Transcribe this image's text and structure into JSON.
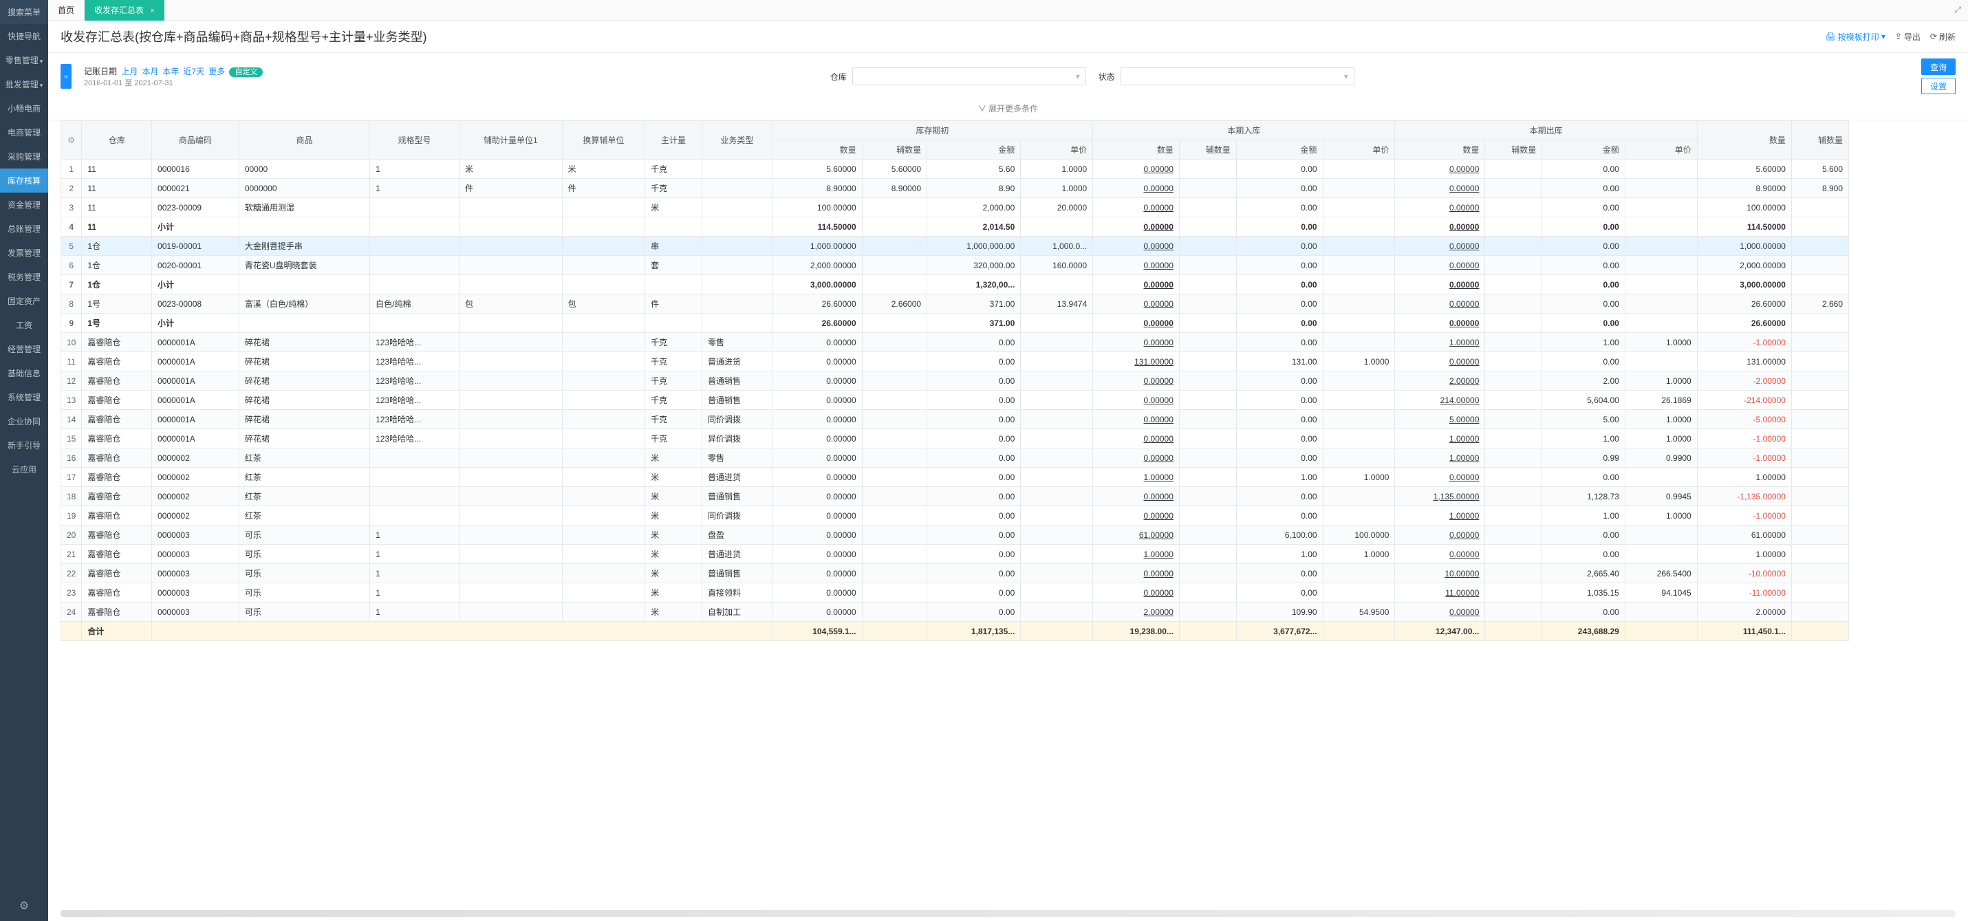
{
  "sidebar": {
    "items": [
      {
        "label": "搜索菜单",
        "arrow": false
      },
      {
        "label": "快捷导航",
        "arrow": false
      },
      {
        "label": "零售管理",
        "arrow": true
      },
      {
        "label": "批发管理",
        "arrow": true
      },
      {
        "label": "小畅电商",
        "arrow": false
      },
      {
        "label": "电商管理",
        "arrow": false
      },
      {
        "label": "采购管理",
        "arrow": false
      },
      {
        "label": "库存核算",
        "arrow": false,
        "active": true
      },
      {
        "label": "资金管理",
        "arrow": false
      },
      {
        "label": "总账管理",
        "arrow": false
      },
      {
        "label": "发票管理",
        "arrow": false
      },
      {
        "label": "税务管理",
        "arrow": false
      },
      {
        "label": "固定资产",
        "arrow": false
      },
      {
        "label": "工资",
        "arrow": false
      },
      {
        "label": "经营管理",
        "arrow": false
      },
      {
        "label": "基础信息",
        "arrow": false
      },
      {
        "label": "系统管理",
        "arrow": false
      },
      {
        "label": "企业协同",
        "arrow": false
      },
      {
        "label": "新手引导",
        "arrow": false
      },
      {
        "label": "云应用",
        "arrow": false
      }
    ]
  },
  "tabs": {
    "home": "首页",
    "active": "收发存汇总表",
    "close": "×",
    "expand": "⤢"
  },
  "title": "收发存汇总表(按仓库+商品编码+商品+规格型号+主计量+业务类型)",
  "actions": {
    "print": "按模板打印",
    "export": "导出",
    "refresh": "刷新"
  },
  "filter": {
    "collapse": "»",
    "date_label": "记账日期",
    "links": [
      "上月",
      "本月",
      "本年",
      "近7天",
      "更多"
    ],
    "custom": "自定义",
    "range": "2016-01-01 至 2021-07-31",
    "wh_label": "仓库",
    "status_label": "状态",
    "query": "查询",
    "settings": "设置",
    "expand": "∨ 展开更多条件"
  },
  "table": {
    "gear": "⚙",
    "groups": {
      "g1": "库存期初",
      "g2": "本期入库",
      "g3": "本期出库"
    },
    "head": {
      "c1": "仓库",
      "c2": "商品编码",
      "c3": "商品",
      "c4": "规格型号",
      "c5": "辅助计量单位1",
      "c6": "换算辅单位",
      "c7": "主计量",
      "c8": "业务类型",
      "q": "数量",
      "aq": "辅数量",
      "amt": "金额",
      "pr": "单价"
    },
    "rows": [
      {
        "i": 1,
        "wh": "11",
        "code": "0000016",
        "name": "00000",
        "spec": "1",
        "aux": "米",
        "conv": "米",
        "uom": "千克",
        "bt": "",
        "q1": "5.60000",
        "aq1": "5.60000",
        "a1": "5.60",
        "p1": "1.0000",
        "q2": "0.00000",
        "aq2": "",
        "a2": "0.00",
        "p2": "",
        "q3": "0.00000",
        "aq3": "",
        "a3": "0.00",
        "p3": "",
        "q4": "5.60000",
        "aq4": "5.600"
      },
      {
        "i": 2,
        "wh": "11",
        "code": "0000021",
        "name": "0000000",
        "spec": "1",
        "aux": "件",
        "conv": "件",
        "uom": "千克",
        "bt": "",
        "q1": "8.90000",
        "aq1": "8.90000",
        "a1": "8.90",
        "p1": "1.0000",
        "q2": "0.00000",
        "aq2": "",
        "a2": "0.00",
        "p2": "",
        "q3": "0.00000",
        "aq3": "",
        "a3": "0.00",
        "p3": "",
        "q4": "8.90000",
        "aq4": "8.900"
      },
      {
        "i": 3,
        "wh": "11",
        "code": "0023-00009",
        "name": "软糖通用测湿",
        "spec": "",
        "aux": "",
        "conv": "",
        "uom": "米",
        "bt": "",
        "q1": "100.00000",
        "aq1": "",
        "a1": "2,000.00",
        "p1": "20.0000",
        "q2": "0.00000",
        "aq2": "",
        "a2": "0.00",
        "p2": "",
        "q3": "0.00000",
        "aq3": "",
        "a3": "0.00",
        "p3": "",
        "q4": "100.00000",
        "aq4": ""
      },
      {
        "i": 4,
        "wh": "11",
        "code": "小计",
        "sub": true,
        "q1": "114.50000",
        "a1": "2,014.50",
        "q2": "0.00000",
        "a2": "0.00",
        "q3": "0.00000",
        "a3": "0.00",
        "q4": "114.50000"
      },
      {
        "i": 5,
        "wh": "1仓",
        "code": "0019-00001",
        "name": "大金刚菩提手串",
        "spec": "",
        "aux": "",
        "conv": "",
        "uom": "串",
        "bt": "",
        "hover": true,
        "q1": "1,000.00000",
        "aq1": "",
        "a1": "1,000,000.00",
        "p1": "1,000.0...",
        "q2": "0.00000",
        "aq2": "",
        "a2": "0.00",
        "p2": "",
        "q3": "0.00000",
        "aq3": "",
        "a3": "0.00",
        "p3": "",
        "q4": "1,000.00000",
        "aq4": ""
      },
      {
        "i": 6,
        "wh": "1仓",
        "code": "0020-00001",
        "name": "青花瓷U盘明晓套装",
        "spec": "",
        "aux": "",
        "conv": "",
        "uom": "套",
        "bt": "",
        "q1": "2,000.00000",
        "aq1": "",
        "a1": "320,000.00",
        "p1": "160.0000",
        "q2": "0.00000",
        "aq2": "",
        "a2": "0.00",
        "p2": "",
        "q3": "0.00000",
        "aq3": "",
        "a3": "0.00",
        "p3": "",
        "q4": "2,000.00000",
        "aq4": ""
      },
      {
        "i": 7,
        "wh": "1仓",
        "code": "小计",
        "sub": true,
        "q1": "3,000.00000",
        "a1": "1,320,00...",
        "q2": "0.00000",
        "a2": "0.00",
        "q3": "0.00000",
        "a3": "0.00",
        "q4": "3,000.00000"
      },
      {
        "i": 8,
        "wh": "1号",
        "code": "0023-00008",
        "name": "富溪（白色/纯棉）",
        "spec": "白色/纯棉",
        "aux": "包",
        "conv": "包",
        "uom": "件",
        "bt": "",
        "q1": "26.60000",
        "aq1": "2.66000",
        "a1": "371.00",
        "p1": "13.9474",
        "q2": "0.00000",
        "aq2": "",
        "a2": "0.00",
        "p2": "",
        "q3": "0.00000",
        "aq3": "",
        "a3": "0.00",
        "p3": "",
        "q4": "26.60000",
        "aq4": "2.660"
      },
      {
        "i": 9,
        "wh": "1号",
        "code": "小计",
        "sub": true,
        "q1": "26.60000",
        "a1": "371.00",
        "q2": "0.00000",
        "a2": "0.00",
        "q3": "0.00000",
        "a3": "0.00",
        "q4": "26.60000"
      },
      {
        "i": 10,
        "wh": "嘉睿陪仓",
        "code": "0000001A",
        "name": "碎花裙",
        "spec": "123哈哈哈...",
        "aux": "",
        "conv": "",
        "uom": "千克",
        "bt": "零售",
        "q1": "0.00000",
        "a1": "0.00",
        "q2": "0.00000",
        "a2": "0.00",
        "q3": "1.00000",
        "a3": "1.00",
        "p3": "1.0000",
        "q4": "-1.00000",
        "neg4": true
      },
      {
        "i": 11,
        "wh": "嘉睿陪仓",
        "code": "0000001A",
        "name": "碎花裙",
        "spec": "123哈哈哈...",
        "aux": "",
        "conv": "",
        "uom": "千克",
        "bt": "普通进货",
        "q1": "0.00000",
        "a1": "0.00",
        "q2": "131.00000",
        "a2": "131.00",
        "p2": "1.0000",
        "q3": "0.00000",
        "a3": "0.00",
        "q4": "131.00000"
      },
      {
        "i": 12,
        "wh": "嘉睿陪仓",
        "code": "0000001A",
        "name": "碎花裙",
        "spec": "123哈哈哈...",
        "aux": "",
        "conv": "",
        "uom": "千克",
        "bt": "普通销售",
        "q1": "0.00000",
        "a1": "0.00",
        "q2": "0.00000",
        "a2": "0.00",
        "q3": "2.00000",
        "a3": "2.00",
        "p3": "1.0000",
        "q4": "-2.00000",
        "neg4": true
      },
      {
        "i": 13,
        "wh": "嘉睿陪仓",
        "code": "0000001A",
        "name": "碎花裙",
        "spec": "123哈哈哈...",
        "aux": "",
        "conv": "",
        "uom": "千克",
        "bt": "普通销售",
        "q1": "0.00000",
        "a1": "0.00",
        "q2": "0.00000",
        "a2": "0.00",
        "q3": "214.00000",
        "a3": "5,604.00",
        "p3": "26.1869",
        "q4": "-214.00000",
        "neg4": true
      },
      {
        "i": 14,
        "wh": "嘉睿陪仓",
        "code": "0000001A",
        "name": "碎花裙",
        "spec": "123哈哈哈...",
        "aux": "",
        "conv": "",
        "uom": "千克",
        "bt": "同价调拨",
        "q1": "0.00000",
        "a1": "0.00",
        "q2": "0.00000",
        "a2": "0.00",
        "q3": "5.00000",
        "a3": "5.00",
        "p3": "1.0000",
        "q4": "-5.00000",
        "neg4": true
      },
      {
        "i": 15,
        "wh": "嘉睿陪仓",
        "code": "0000001A",
        "name": "碎花裙",
        "spec": "123哈哈哈...",
        "aux": "",
        "conv": "",
        "uom": "千克",
        "bt": "异价调拨",
        "q1": "0.00000",
        "a1": "0.00",
        "q2": "0.00000",
        "a2": "0.00",
        "q3": "1.00000",
        "a3": "1.00",
        "p3": "1.0000",
        "q4": "-1.00000",
        "neg4": true
      },
      {
        "i": 16,
        "wh": "嘉睿陪仓",
        "code": "0000002",
        "name": "红茶",
        "spec": "",
        "aux": "",
        "conv": "",
        "uom": "米",
        "bt": "零售",
        "q1": "0.00000",
        "a1": "0.00",
        "q2": "0.00000",
        "a2": "0.00",
        "q3": "1.00000",
        "a3": "0.99",
        "p3": "0.9900",
        "q4": "-1.00000",
        "neg4": true
      },
      {
        "i": 17,
        "wh": "嘉睿陪仓",
        "code": "0000002",
        "name": "红茶",
        "spec": "",
        "aux": "",
        "conv": "",
        "uom": "米",
        "bt": "普通进货",
        "q1": "0.00000",
        "a1": "0.00",
        "q2": "1.00000",
        "a2": "1.00",
        "p2": "1.0000",
        "q3": "0.00000",
        "a3": "0.00",
        "q4": "1.00000"
      },
      {
        "i": 18,
        "wh": "嘉睿陪仓",
        "code": "0000002",
        "name": "红茶",
        "spec": "",
        "aux": "",
        "conv": "",
        "uom": "米",
        "bt": "普通销售",
        "q1": "0.00000",
        "a1": "0.00",
        "q2": "0.00000",
        "a2": "0.00",
        "q3": "1,135.00000",
        "a3": "1,128.73",
        "p3": "0.9945",
        "q4": "-1,135.00000",
        "neg4": true
      },
      {
        "i": 19,
        "wh": "嘉睿陪仓",
        "code": "0000002",
        "name": "红茶",
        "spec": "",
        "aux": "",
        "conv": "",
        "uom": "米",
        "bt": "同价调拨",
        "q1": "0.00000",
        "a1": "0.00",
        "q2": "0.00000",
        "a2": "0.00",
        "q3": "1.00000",
        "a3": "1.00",
        "p3": "1.0000",
        "q4": "-1.00000",
        "neg4": true
      },
      {
        "i": 20,
        "wh": "嘉睿陪仓",
        "code": "0000003",
        "name": "可乐",
        "spec": "1",
        "aux": "",
        "conv": "",
        "uom": "米",
        "bt": "盘盈",
        "q1": "0.00000",
        "a1": "0.00",
        "q2": "61.00000",
        "a2": "6,100.00",
        "p2": "100.0000",
        "q3": "0.00000",
        "a3": "0.00",
        "q4": "61.00000"
      },
      {
        "i": 21,
        "wh": "嘉睿陪仓",
        "code": "0000003",
        "name": "可乐",
        "spec": "1",
        "aux": "",
        "conv": "",
        "uom": "米",
        "bt": "普通进货",
        "q1": "0.00000",
        "a1": "0.00",
        "q2": "1.00000",
        "a2": "1.00",
        "p2": "1.0000",
        "q3": "0.00000",
        "a3": "0.00",
        "q4": "1.00000"
      },
      {
        "i": 22,
        "wh": "嘉睿陪仓",
        "code": "0000003",
        "name": "可乐",
        "spec": "1",
        "aux": "",
        "conv": "",
        "uom": "米",
        "bt": "普通销售",
        "q1": "0.00000",
        "a1": "0.00",
        "q2": "0.00000",
        "a2": "0.00",
        "q3": "10.00000",
        "a3": "2,665.40",
        "p3": "266.5400",
        "q4": "-10.00000",
        "neg4": true
      },
      {
        "i": 23,
        "wh": "嘉睿陪仓",
        "code": "0000003",
        "name": "可乐",
        "spec": "1",
        "aux": "",
        "conv": "",
        "uom": "米",
        "bt": "直接领料",
        "q1": "0.00000",
        "a1": "0.00",
        "q2": "0.00000",
        "a2": "0.00",
        "q3": "11.00000",
        "a3": "1,035.15",
        "p3": "94.1045",
        "q4": "-11.00000",
        "neg4": true
      },
      {
        "i": 24,
        "wh": "嘉睿陪仓",
        "code": "0000003",
        "name": "可乐",
        "spec": "1",
        "aux": "",
        "conv": "",
        "uom": "米",
        "bt": "自制加工",
        "q1": "0.00000",
        "a1": "0.00",
        "q2": "2.00000",
        "a2": "109.90",
        "p2": "54.9500",
        "q3": "0.00000",
        "a3": "0.00",
        "q4": "2.00000"
      }
    ],
    "total": {
      "label": "合计",
      "q1": "104,559.1...",
      "a1": "1,817,135...",
      "q2": "19,238.00...",
      "a2": "3,677,672...",
      "q3": "12,347.00...",
      "a3": "243,688.29",
      "q4": "111,450.1..."
    }
  }
}
